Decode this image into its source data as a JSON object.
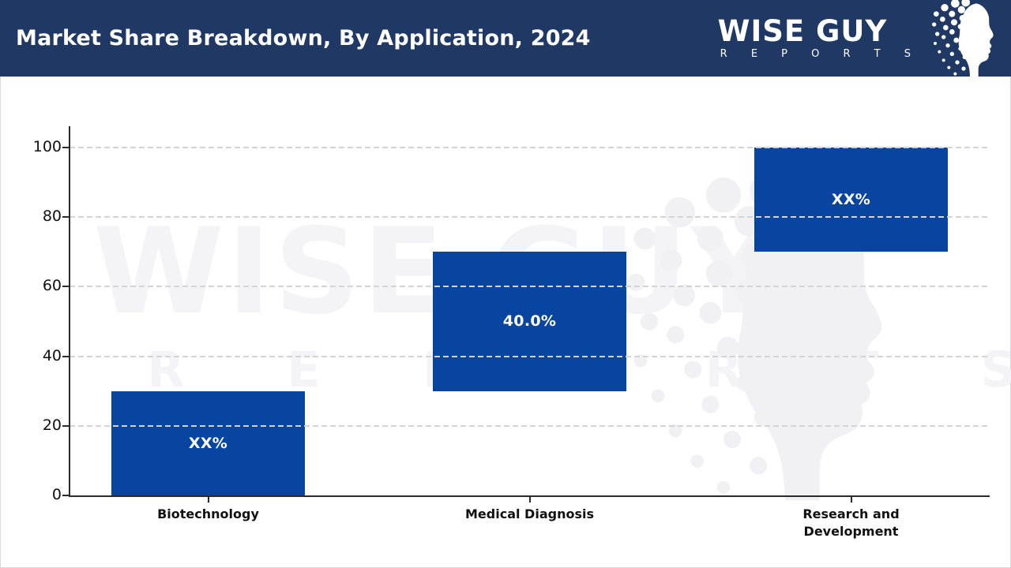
{
  "header": {
    "title": "Market Share Breakdown, By Application, 2024",
    "logo": {
      "line1": "WISE GUY",
      "line2": "R E P O R T S"
    }
  },
  "watermark": {
    "line1": "WISE GUY",
    "line2": "R E P O R T S"
  },
  "colors": {
    "header_bg": "#1f3864",
    "bar": "#0845a0",
    "bar_label": "#ffffff",
    "axis": "#2b2b2b",
    "grid": "#d4d4d4",
    "watermark": "#f3f3f5",
    "page_border": "#d9d9d9"
  },
  "chart_data": {
    "type": "bar",
    "subtype": "floating-waterfall",
    "title": "Market Share Breakdown, By Application, 2024",
    "categories": [
      "Biotechnology",
      "Medical Diagnosis",
      "Research and Development"
    ],
    "bars": [
      {
        "category": "Biotechnology",
        "start": 0,
        "end": 30,
        "label": "XX%"
      },
      {
        "category": "Medical Diagnosis",
        "start": 30,
        "end": 70,
        "label": "40.0%"
      },
      {
        "category": "Research and Development",
        "start": 70,
        "end": 100,
        "label": "XX%"
      }
    ],
    "xlabel": "",
    "ylabel": "",
    "yticks": [
      0,
      20,
      40,
      60,
      80,
      100
    ],
    "ylim": [
      0,
      106
    ],
    "grid": "horizontal-dashed",
    "grid_above_bars": true,
    "legend": "none",
    "bar_color": "#0845a0",
    "value_label_color": "#ffffff"
  }
}
